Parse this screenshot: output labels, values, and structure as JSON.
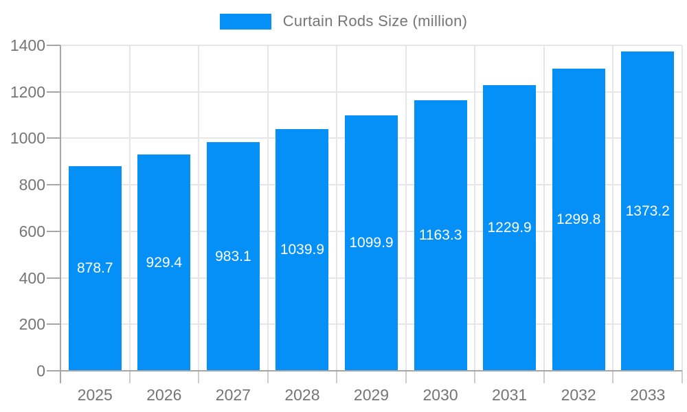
{
  "chart_data": {
    "type": "bar",
    "title": "Curtain Rods Size (million)",
    "categories": [
      "2025",
      "2026",
      "2027",
      "2028",
      "2029",
      "2030",
      "2031",
      "2032",
      "2033"
    ],
    "values": [
      878.7,
      929.4,
      983.1,
      1039.9,
      1099.9,
      1163.3,
      1229.9,
      1299.8,
      1373.2
    ],
    "bar_labels": [
      "878.7",
      "929.4",
      "983.1",
      "1039.9",
      "1099.9",
      "1163.3",
      "1229.9",
      "1299.8",
      "1373.2"
    ],
    "yticks": [
      0,
      200,
      400,
      600,
      800,
      1000,
      1200,
      1400
    ],
    "ytick_labels": [
      "0",
      "200",
      "400",
      "600",
      "800",
      "1000",
      "1200",
      "1400"
    ],
    "ylim": [
      0,
      1400
    ],
    "xlabel": "",
    "ylabel": "",
    "grid": true,
    "legend_position": "top-center",
    "colors": {
      "bar": "#0590f8",
      "bar_value_text": "#ffffff",
      "axis_text": "#757575",
      "legend_text": "#757575",
      "grid_line": "#e6e6e6",
      "axis_line": "#a6a6a6",
      "tick_line": "#cccccc",
      "background": "#ffffff"
    }
  }
}
